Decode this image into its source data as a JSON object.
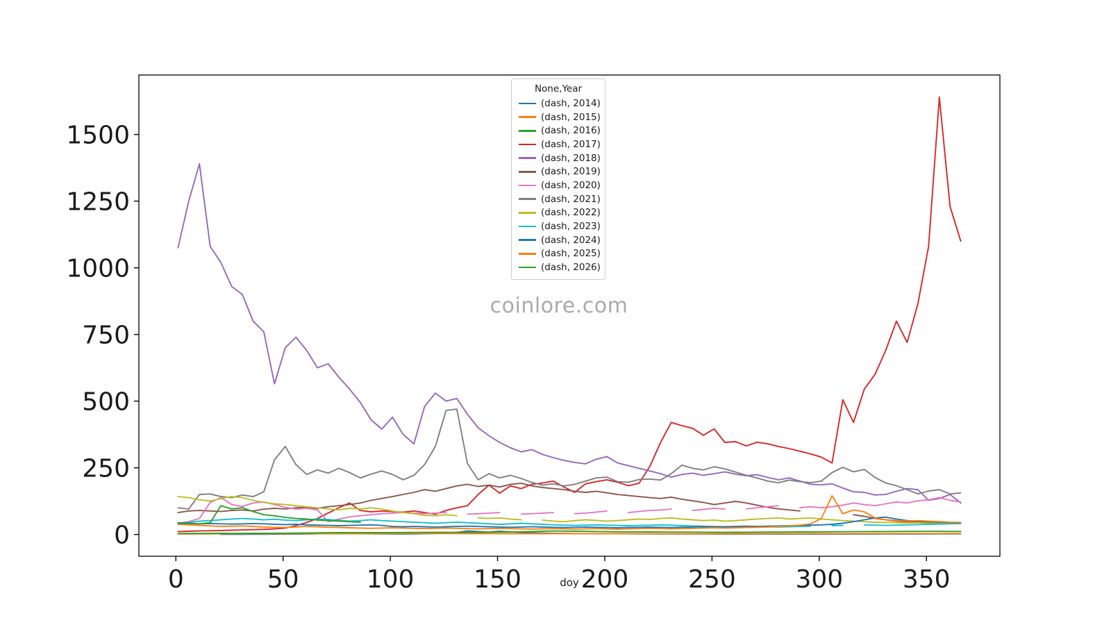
{
  "watermark": "coinlore.com",
  "chart_data": {
    "type": "line",
    "title": "",
    "xlabel": "doy",
    "ylabel": "",
    "legend_title": "None,Year",
    "legend_position": "upper center",
    "grid": false,
    "x_ticks": [
      0,
      50,
      100,
      150,
      200,
      250,
      300,
      350
    ],
    "y_ticks": [
      0,
      250,
      500,
      750,
      1000,
      1250,
      1500
    ],
    "xlim": [
      -17.25,
      384.25
    ],
    "ylim": [
      -81.7,
      1723
    ],
    "x_start": 1,
    "x_step": 5,
    "series": [
      {
        "name": "(dash, 2014)",
        "color": "#1f77b4",
        "values": [
          null,
          null,
          null,
          null,
          0.5,
          0.6,
          0.7,
          0.8,
          0.9,
          1.0,
          1.2,
          1.5,
          2,
          2.5,
          3,
          3,
          2.8,
          2.6,
          2.4,
          2.2,
          2.0,
          1.9,
          2.2,
          2.6,
          3.5,
          5,
          8,
          13,
          11,
          9,
          12,
          10,
          8,
          6,
          5,
          4.5,
          4,
          3.5,
          3.2,
          3.0,
          2.8,
          2.6,
          2.4,
          2.2,
          2.1,
          2.0,
          1.9,
          1.9,
          1.8,
          1.8,
          1.7,
          1.7,
          1.6,
          1.6,
          1.5,
          1.5,
          1.5,
          1.4,
          1.4,
          1.4,
          1.5,
          1.5,
          1.6,
          1.6,
          1.7,
          1.7,
          1.8,
          1.8,
          1.9,
          2.0,
          2.0,
          2.1,
          2.1,
          2.2
        ]
      },
      {
        "name": "(dash, 2015)",
        "color": "#ff7f0e",
        "values": [
          2.1,
          2.0,
          1.9,
          2.2,
          2.5,
          2.8,
          3.0,
          3.2,
          3.0,
          2.8,
          2.9,
          3.0,
          3.1,
          3.0,
          2.9,
          2.8,
          2.9,
          3.0,
          3.1,
          3.2,
          3.5,
          3.8,
          4.0,
          3.8,
          3.6,
          3.5,
          3.4,
          3.3,
          3.2,
          3.1,
          3.0,
          2.9,
          2.9,
          3.0,
          3.0,
          3.1,
          3.1,
          3.2,
          3.2,
          3.1,
          3.0,
          2.9,
          2.8,
          2.7,
          2.6,
          2.5,
          2.4,
          2.3,
          2.3,
          2.4,
          2.5,
          2.6,
          2.7,
          2.8,
          2.9,
          3.0,
          3.1,
          3.2,
          3.3,
          3.4,
          3.3,
          3.2,
          3.1,
          3.0,
          3.1,
          3.2,
          3.3,
          3.4,
          3.5,
          3.4,
          3.3,
          3.3,
          3.4,
          3.4
        ]
      },
      {
        "name": "(dash, 2016)",
        "color": "#2ca02c",
        "values": [
          3.4,
          3.6,
          3.8,
          4.0,
          4.2,
          4.1,
          4.0,
          4.2,
          4.4,
          4.6,
          4.8,
          5.0,
          5.5,
          6.0,
          6.5,
          7.0,
          7.2,
          7.0,
          6.8,
          7.0,
          7.2,
          7.4,
          7.6,
          7.8,
          8.0,
          7.8,
          7.6,
          7.8,
          8.0,
          8.5,
          9.0,
          9.5,
          10.0,
          11.0,
          12.0,
          13.0,
          12.5,
          12.0,
          11.5,
          11.0,
          10.5,
          10.0,
          9.8,
          9.6,
          9.4,
          9.2,
          9.0,
          8.8,
          8.6,
          8.4,
          8.2,
          8.0,
          8.2,
          8.4,
          8.6,
          8.8,
          9.0,
          9.2,
          9.4,
          9.6,
          9.8,
          10.0,
          10.2,
          10.4,
          10.6,
          10.8,
          11.0,
          11.2,
          11.4,
          11.6,
          11.5,
          11.4,
          11.3,
          11.2
        ]
      },
      {
        "name": "(dash, 2017)",
        "color": "#d62728",
        "values": [
          11,
          12,
          13,
          14,
          15,
          16,
          17,
          18,
          19,
          21,
          24,
          33,
          45,
          60,
          80,
          100,
          118,
          90,
          85,
          88,
          86,
          84,
          88,
          82,
          76,
          90,
          100,
          108,
          150,
          185,
          155,
          182,
          172,
          188,
          193,
          200,
          178,
          158,
          190,
          198,
          205,
          196,
          183,
          192,
          255,
          345,
          420,
          408,
          398,
          372,
          396,
          345,
          348,
          332,
          346,
          340,
          330,
          322,
          312,
          302,
          290,
          268,
          505,
          420,
          545,
          600,
          690,
          800,
          720,
          865,
          1080,
          1640,
          1230,
          1100
        ]
      },
      {
        "name": "(dash, 2018)",
        "color": "#9467bd",
        "values": [
          1075,
          1250,
          1390,
          1080,
          1020,
          930,
          900,
          800,
          760,
          565,
          700,
          740,
          690,
          625,
          640,
          590,
          545,
          495,
          430,
          395,
          440,
          375,
          340,
          480,
          530,
          500,
          510,
          450,
          400,
          370,
          345,
          325,
          310,
          318,
          300,
          288,
          278,
          270,
          265,
          282,
          292,
          268,
          258,
          248,
          238,
          228,
          215,
          225,
          230,
          222,
          228,
          235,
          226,
          220,
          224,
          214,
          205,
          212,
          200,
          188,
          186,
          190,
          174,
          160,
          158,
          148,
          150,
          162,
          172,
          168,
          128,
          135,
          150,
          118
        ]
      },
      {
        "name": "(dash, 2019)",
        "color": "#8c564b",
        "gaps": [
          [
            292,
            298
          ],
          [
            306,
            312
          ]
        ],
        "values": [
          82,
          88,
          90,
          88,
          86,
          90,
          92,
          88,
          95,
          98,
          96,
          100,
          102,
          98,
          104,
          108,
          112,
          118,
          128,
          135,
          142,
          150,
          158,
          168,
          162,
          172,
          182,
          188,
          180,
          185,
          178,
          188,
          192,
          182,
          176,
          172,
          168,
          162,
          158,
          162,
          156,
          150,
          146,
          142,
          138,
          135,
          140,
          132,
          126,
          120,
          112,
          118,
          124,
          118,
          110,
          102,
          96,
          92,
          88,
          85,
          82,
          80,
          78,
          74,
          68,
          60,
          55,
          50,
          48,
          46,
          45,
          44,
          44,
          43
        ]
      },
      {
        "name": "(dash, 2020)",
        "color": "#e377c2",
        "gaps": [
          [
            128,
            133
          ],
          [
            152,
            158
          ],
          [
            178,
            184
          ],
          [
            204,
            210
          ],
          [
            232,
            238
          ],
          [
            258,
            264
          ],
          [
            284,
            290
          ]
        ],
        "values": [
          42,
          48,
          60,
          120,
          138,
          112,
          105,
          118,
          122,
          112,
          102,
          95,
          98,
          92,
          48,
          58,
          66,
          70,
          74,
          78,
          80,
          82,
          80,
          78,
          80,
          82,
          78,
          76,
          78,
          80,
          82,
          78,
          76,
          78,
          80,
          82,
          80,
          78,
          80,
          84,
          88,
          85,
          82,
          86,
          90,
          92,
          95,
          92,
          90,
          94,
          98,
          95,
          92,
          96,
          100,
          104,
          108,
          104,
          100,
          104,
          100,
          104,
          110,
          118,
          112,
          108,
          115,
          122,
          118,
          126,
          130,
          138,
          128,
          122
        ]
      },
      {
        "name": "(dash, 2021)",
        "color": "#7f7f7f",
        "values": [
          100,
          95,
          150,
          152,
          142,
          138,
          148,
          142,
          160,
          280,
          330,
          262,
          225,
          242,
          230,
          248,
          232,
          212,
          226,
          238,
          225,
          205,
          222,
          262,
          330,
          465,
          470,
          265,
          205,
          228,
          212,
          222,
          210,
          195,
          185,
          190,
          182,
          188,
          200,
          212,
          215,
          198,
          196,
          206,
          208,
          204,
          228,
          260,
          248,
          242,
          254,
          246,
          234,
          222,
          212,
          200,
          194,
          204,
          198,
          194,
          200,
          232,
          252,
          235,
          244,
          214,
          193,
          183,
          168,
          152,
          163,
          168,
          152,
          156
        ]
      },
      {
        "name": "(dash, 2022)",
        "color": "#bcbd22",
        "gaps": [
          [
            134,
            138
          ],
          [
            162,
            168
          ]
        ],
        "values": [
          142,
          138,
          130,
          125,
          135,
          142,
          138,
          128,
          120,
          115,
          112,
          108,
          104,
          100,
          96,
          92,
          98,
          96,
          100,
          95,
          88,
          82,
          78,
          72,
          70,
          74,
          70,
          66,
          62,
          60,
          62,
          58,
          55,
          52,
          54,
          50,
          48,
          52,
          55,
          53,
          50,
          52,
          55,
          58,
          56,
          60,
          62,
          58,
          55,
          52,
          54,
          50,
          52,
          55,
          58,
          60,
          62,
          58,
          60,
          62,
          58,
          55,
          52,
          50,
          48,
          46,
          45,
          44,
          43,
          44,
          42,
          43,
          42,
          42
        ]
      },
      {
        "name": "(dash, 2023)",
        "color": "#17becf",
        "gaps": [
          [
            298,
            304
          ],
          [
            314,
            318
          ]
        ],
        "values": [
          42,
          45,
          50,
          52,
          55,
          58,
          60,
          58,
          55,
          57,
          54,
          52,
          55,
          58,
          56,
          53,
          50,
          52,
          55,
          52,
          50,
          48,
          46,
          44,
          42,
          44,
          46,
          44,
          42,
          40,
          38,
          40,
          42,
          40,
          38,
          36,
          35,
          34,
          35,
          36,
          35,
          34,
          33,
          34,
          35,
          36,
          35,
          33,
          32,
          31,
          30,
          29,
          28,
          29,
          30,
          29,
          28,
          29,
          30,
          31,
          32,
          33,
          34,
          35,
          36,
          35,
          34,
          35,
          36,
          37,
          38,
          39,
          40,
          41
        ]
      },
      {
        "name": "(dash, 2024)",
        "color": "#1f77b4",
        "values": [
          44,
          42,
          40,
          41,
          40,
          39,
          40,
          41,
          40,
          38,
          37,
          38,
          36,
          35,
          34,
          33,
          34,
          35,
          36,
          34,
          30,
          29,
          30,
          29,
          28,
          29,
          30,
          31,
          30,
          29,
          28,
          27,
          28,
          29,
          28,
          27,
          26,
          27,
          28,
          27,
          26,
          25,
          26,
          27,
          28,
          27,
          26,
          27,
          28,
          29,
          28,
          29,
          30,
          31,
          30,
          31,
          32,
          33,
          34,
          35,
          36,
          38,
          42,
          48,
          55,
          62,
          65,
          58,
          52,
          50,
          48,
          46,
          45,
          44
        ]
      },
      {
        "name": "(dash, 2025)",
        "color": "#ff7f0e",
        "values": [
          38,
          36,
          34,
          32,
          30,
          31,
          32,
          30,
          28,
          27,
          26,
          28,
          30,
          29,
          27,
          26,
          25,
          24,
          23,
          24,
          25,
          24,
          23,
          22,
          23,
          24,
          23,
          22,
          21,
          22,
          23,
          22,
          21,
          20,
          21,
          22,
          21,
          20,
          21,
          22,
          21,
          20,
          21,
          22,
          23,
          22,
          21,
          22,
          23,
          24,
          25,
          24,
          25,
          26,
          27,
          28,
          30,
          32,
          35,
          40,
          60,
          145,
          78,
          92,
          85,
          62,
          55,
          52,
          50,
          52,
          50,
          48,
          46,
          45
        ]
      },
      {
        "name": "(dash, 2026)",
        "color": "#2ca02c",
        "values": [
          42,
          41,
          40,
          44,
          108,
          96,
          100,
          86,
          74,
          70,
          64,
          60,
          58,
          54,
          52,
          50,
          48,
          46,
          null,
          null,
          null,
          null,
          null,
          null,
          null,
          null,
          null,
          null,
          null,
          null,
          null,
          null,
          null,
          null,
          null,
          null,
          null,
          null,
          null,
          null,
          null,
          null,
          null,
          null,
          null,
          null,
          null,
          null,
          null,
          null,
          null,
          null,
          null,
          null,
          null,
          null,
          null,
          null,
          null,
          null,
          null,
          null,
          null,
          null,
          null,
          null,
          null,
          null,
          null,
          null,
          null,
          null,
          null,
          null
        ]
      }
    ]
  }
}
